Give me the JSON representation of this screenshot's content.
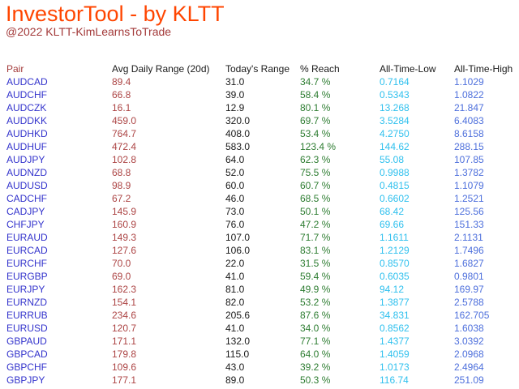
{
  "header": {
    "title": "InvestorTool - by KLTT",
    "subtitle": "@2022 KLTT-KimLearnsToTrade"
  },
  "table": {
    "columns": [
      "Pair",
      "Avg Daily Range (20d)",
      "Today's Range",
      "% Reach",
      "All-Time-Low",
      "All-Time-High"
    ],
    "rows": [
      {
        "pair": "AUDCAD",
        "avg_daily_range": "89.4",
        "todays_range": "31.0",
        "reach": "34.7 %",
        "all_time_low": "0.7164",
        "all_time_high": "1.1029"
      },
      {
        "pair": "AUDCHF",
        "avg_daily_range": "66.8",
        "todays_range": "39.0",
        "reach": "58.4 %",
        "all_time_low": "0.5343",
        "all_time_high": "1.0822"
      },
      {
        "pair": "AUDCZK",
        "avg_daily_range": "16.1",
        "todays_range": "12.9",
        "reach": "80.1 %",
        "all_time_low": "13.268",
        "all_time_high": "21.847"
      },
      {
        "pair": "AUDDKK",
        "avg_daily_range": "459.0",
        "todays_range": "320.0",
        "reach": "69.7 %",
        "all_time_low": "3.5284",
        "all_time_high": "6.4083"
      },
      {
        "pair": "AUDHKD",
        "avg_daily_range": "764.7",
        "todays_range": "408.0",
        "reach": "53.4 %",
        "all_time_low": "4.2750",
        "all_time_high": "8.6158"
      },
      {
        "pair": "AUDHUF",
        "avg_daily_range": "472.4",
        "todays_range": "583.0",
        "reach": "123.4 %",
        "all_time_low": "144.62",
        "all_time_high": "288.15"
      },
      {
        "pair": "AUDJPY",
        "avg_daily_range": "102.8",
        "todays_range": "64.0",
        "reach": "62.3 %",
        "all_time_low": "55.08",
        "all_time_high": "107.85"
      },
      {
        "pair": "AUDNZD",
        "avg_daily_range": "68.8",
        "todays_range": "52.0",
        "reach": "75.5 %",
        "all_time_low": "0.9988",
        "all_time_high": "1.3782"
      },
      {
        "pair": "AUDUSD",
        "avg_daily_range": "98.9",
        "todays_range": "60.0",
        "reach": "60.7 %",
        "all_time_low": "0.4815",
        "all_time_high": "1.1079"
      },
      {
        "pair": "CADCHF",
        "avg_daily_range": "67.2",
        "todays_range": "46.0",
        "reach": "68.5 %",
        "all_time_low": "0.6602",
        "all_time_high": "1.2521"
      },
      {
        "pair": "CADJPY",
        "avg_daily_range": "145.9",
        "todays_range": "73.0",
        "reach": "50.1 %",
        "all_time_low": "68.42",
        "all_time_high": "125.56"
      },
      {
        "pair": "CHFJPY",
        "avg_daily_range": "160.9",
        "todays_range": "76.0",
        "reach": "47.2 %",
        "all_time_low": "69.66",
        "all_time_high": "151.33"
      },
      {
        "pair": "EURAUD",
        "avg_daily_range": "149.3",
        "todays_range": "107.0",
        "reach": "71.7 %",
        "all_time_low": "1.1611",
        "all_time_high": "2.1131"
      },
      {
        "pair": "EURCAD",
        "avg_daily_range": "127.6",
        "todays_range": "106.0",
        "reach": "83.1 %",
        "all_time_low": "1.2129",
        "all_time_high": "1.7496"
      },
      {
        "pair": "EURCHF",
        "avg_daily_range": "70.0",
        "todays_range": "22.0",
        "reach": "31.5 %",
        "all_time_low": "0.8570",
        "all_time_high": "1.6827"
      },
      {
        "pair": "EURGBP",
        "avg_daily_range": "69.0",
        "todays_range": "41.0",
        "reach": "59.4 %",
        "all_time_low": "0.6035",
        "all_time_high": "0.9801"
      },
      {
        "pair": "EURJPY",
        "avg_daily_range": "162.3",
        "todays_range": "81.0",
        "reach": "49.9 %",
        "all_time_low": "94.12",
        "all_time_high": "169.97"
      },
      {
        "pair": "EURNZD",
        "avg_daily_range": "154.1",
        "todays_range": "82.0",
        "reach": "53.2 %",
        "all_time_low": "1.3877",
        "all_time_high": "2.5788"
      },
      {
        "pair": "EURRUB",
        "avg_daily_range": "234.6",
        "todays_range": "205.6",
        "reach": "87.6 %",
        "all_time_low": "34.831",
        "all_time_high": "162.705"
      },
      {
        "pair": "EURUSD",
        "avg_daily_range": "120.7",
        "todays_range": "41.0",
        "reach": "34.0 %",
        "all_time_low": "0.8562",
        "all_time_high": "1.6038"
      },
      {
        "pair": "GBPAUD",
        "avg_daily_range": "171.1",
        "todays_range": "132.0",
        "reach": "77.1 %",
        "all_time_low": "1.4377",
        "all_time_high": "3.0392"
      },
      {
        "pair": "GBPCAD",
        "avg_daily_range": "179.8",
        "todays_range": "115.0",
        "reach": "64.0 %",
        "all_time_low": "1.4059",
        "all_time_high": "2.0968"
      },
      {
        "pair": "GBPCHF",
        "avg_daily_range": "109.6",
        "todays_range": "43.0",
        "reach": "39.2 %",
        "all_time_low": "1.0173",
        "all_time_high": "2.4964"
      },
      {
        "pair": "GBPJPY",
        "avg_daily_range": "177.1",
        "todays_range": "89.0",
        "reach": "50.3 %",
        "all_time_low": "116.74",
        "all_time_high": "251.09"
      }
    ]
  },
  "colors": {
    "title": "#FF4500",
    "subtitle": "#A33A3A",
    "header-text": "#1A1A1A",
    "pair": "#3333CC",
    "adr": "#AC4444",
    "today": "#1A1A1A",
    "reach": "#2E7D32",
    "atl": "#2FC0EE",
    "ath": "#4D6FDC"
  }
}
